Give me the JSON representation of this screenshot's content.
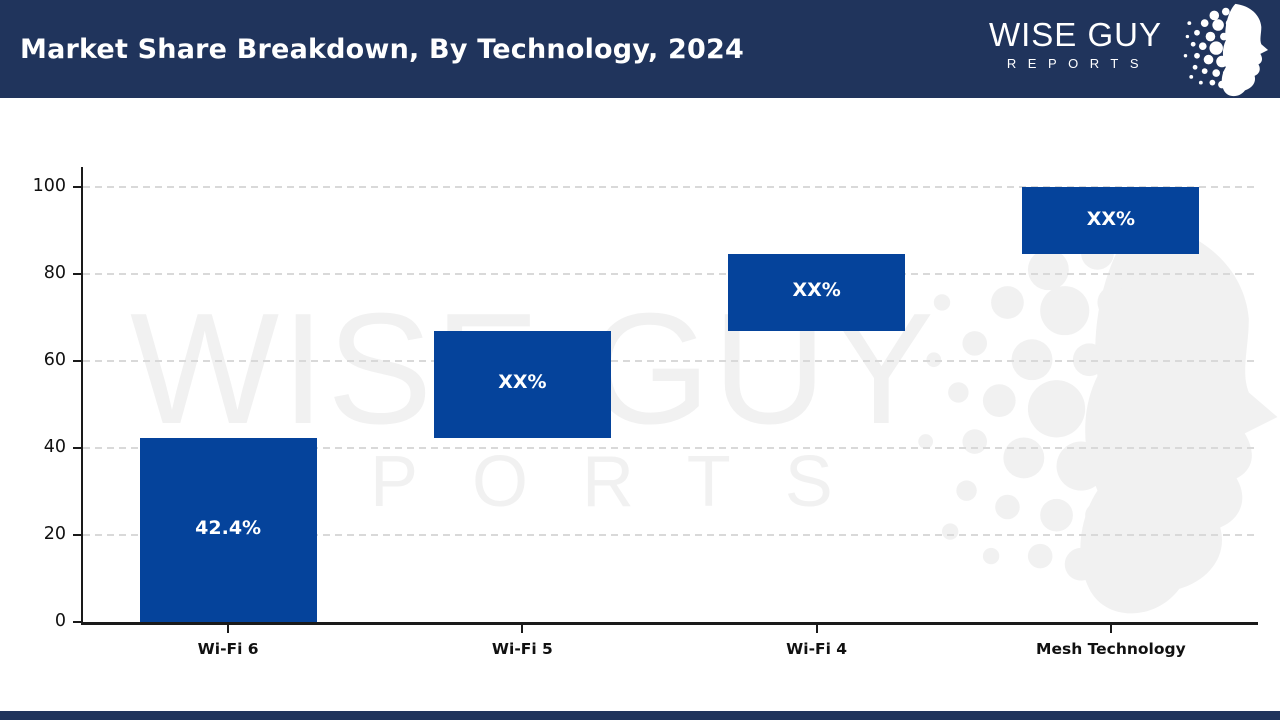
{
  "header": {
    "title": "Market Share Breakdown, By Technology, 2024",
    "logo_line1": "WISE GUY",
    "logo_line2": "REPORTS"
  },
  "watermark": {
    "line1": "WISE GUY",
    "line2": "REPORTS"
  },
  "chart_data": {
    "type": "bar",
    "variant": "waterfall",
    "title": "Market Share Breakdown, By Technology, 2024",
    "categories": [
      "Wi-Fi 6",
      "Wi-Fi 5",
      "Wi-Fi 4",
      "Mesh Technology"
    ],
    "segments": [
      {
        "category": "Wi-Fi 6",
        "start": 0,
        "end": 42.4,
        "label": "42.4%"
      },
      {
        "category": "Wi-Fi 5",
        "start": 42.4,
        "end": 67,
        "label": "XX%"
      },
      {
        "category": "Wi-Fi 4",
        "start": 67,
        "end": 84.5,
        "label": "XX%"
      },
      {
        "category": "Mesh Technology",
        "start": 84.5,
        "end": 100,
        "label": "XX%"
      }
    ],
    "yticks": [
      0,
      20,
      40,
      60,
      80,
      100
    ],
    "ylim": [
      0,
      105
    ],
    "xlabel": "",
    "ylabel": "",
    "grid": "dashed-horizontal",
    "legend": "none",
    "bar_color": "#05439b"
  },
  "colors": {
    "header_bg": "#20345c",
    "footer_bg": "#20345c",
    "bar": "#05439b",
    "grid": "#d9d9d9",
    "axis": "#1a1a1a",
    "watermark": "#f1f1f1",
    "bar_label_text": "#ffffff"
  }
}
